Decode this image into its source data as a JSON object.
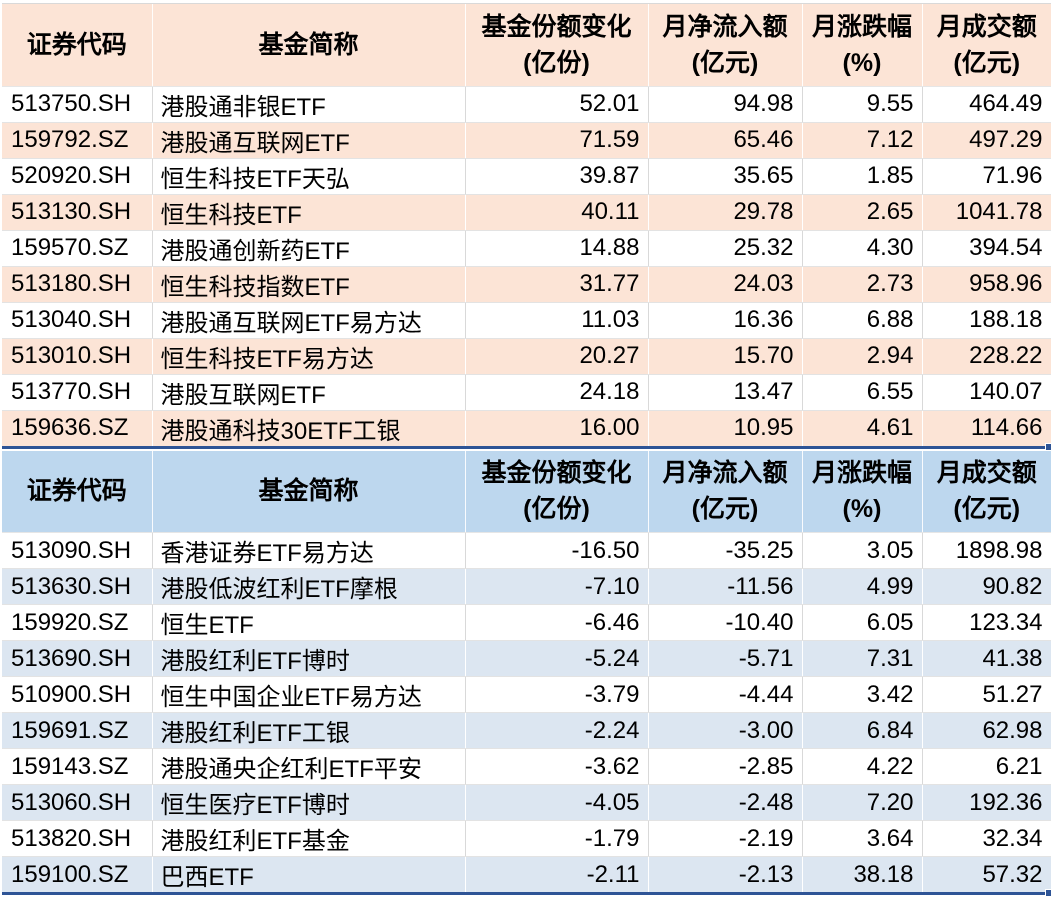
{
  "colors": {
    "inflow_header_bg": "#fce4d6",
    "inflow_stripe_bg": "#fce4d6",
    "outflow_header_bg": "#bdd7ee",
    "outflow_stripe_bg": "#dce6f1",
    "gridline": "#d9d9d9",
    "selection_border": "#2e5496",
    "text": "#000000"
  },
  "tables": [
    {
      "id": "monthly-inflow",
      "theme": "orange",
      "columns": [
        {
          "line1": "证券代码",
          "line2": ""
        },
        {
          "line1": "基金简称",
          "line2": ""
        },
        {
          "line1": "基金份额变化",
          "line2": "(亿份)"
        },
        {
          "line1": "月净流入额",
          "line2": "(亿元)"
        },
        {
          "line1": "月涨跌幅",
          "line2": "(%)"
        },
        {
          "line1": "月成交额",
          "line2": "(亿元)"
        }
      ],
      "rows": [
        [
          "513750.SH",
          "港股通非银ETF",
          "52.01",
          "94.98",
          "9.55",
          "464.49"
        ],
        [
          "159792.SZ",
          "港股通互联网ETF",
          "71.59",
          "65.46",
          "7.12",
          "497.29"
        ],
        [
          "520920.SH",
          "恒生科技ETF天弘",
          "39.87",
          "35.65",
          "1.85",
          "71.96"
        ],
        [
          "513130.SH",
          "恒生科技ETF",
          "40.11",
          "29.78",
          "2.65",
          "1041.78"
        ],
        [
          "159570.SZ",
          "港股通创新药ETF",
          "14.88",
          "25.32",
          "4.30",
          "394.54"
        ],
        [
          "513180.SH",
          "恒生科技指数ETF",
          "31.77",
          "24.03",
          "2.73",
          "958.96"
        ],
        [
          "513040.SH",
          "港股通互联网ETF易方达",
          "11.03",
          "16.36",
          "6.88",
          "188.18"
        ],
        [
          "513010.SH",
          "恒生科技ETF易方达",
          "20.27",
          "15.70",
          "2.94",
          "228.22"
        ],
        [
          "513770.SH",
          "港股互联网ETF",
          "24.18",
          "13.47",
          "6.55",
          "140.07"
        ],
        [
          "159636.SZ",
          "港股通科技30ETF工银",
          "16.00",
          "10.95",
          "4.61",
          "114.66"
        ]
      ]
    },
    {
      "id": "monthly-outflow",
      "theme": "blue",
      "columns": [
        {
          "line1": "证券代码",
          "line2": ""
        },
        {
          "line1": "基金简称",
          "line2": ""
        },
        {
          "line1": "基金份额变化",
          "line2": "(亿份)"
        },
        {
          "line1": "月净流入额",
          "line2": "(亿元)"
        },
        {
          "line1": "月涨跌幅",
          "line2": "(%)"
        },
        {
          "line1": "月成交额",
          "line2": "(亿元)"
        }
      ],
      "rows": [
        [
          "513090.SH",
          "香港证券ETF易方达",
          "-16.50",
          "-35.25",
          "3.05",
          "1898.98"
        ],
        [
          "513630.SH",
          "港股低波红利ETF摩根",
          "-7.10",
          "-11.56",
          "4.99",
          "90.82"
        ],
        [
          "159920.SZ",
          "恒生ETF",
          "-6.46",
          "-10.40",
          "6.05",
          "123.34"
        ],
        [
          "513690.SH",
          "港股红利ETF博时",
          "-5.24",
          "-5.71",
          "7.31",
          "41.38"
        ],
        [
          "510900.SH",
          "恒生中国企业ETF易方达",
          "-3.79",
          "-4.44",
          "3.42",
          "51.27"
        ],
        [
          "159691.SZ",
          "港股红利ETF工银",
          "-2.24",
          "-3.00",
          "6.84",
          "62.98"
        ],
        [
          "159143.SZ",
          "港股通央企红利ETF平安",
          "-3.62",
          "-2.85",
          "4.22",
          "6.21"
        ],
        [
          "513060.SH",
          "恒生医疗ETF博时",
          "-4.05",
          "-2.48",
          "7.20",
          "192.36"
        ],
        [
          "513820.SH",
          "港股红利ETF基金",
          "-1.79",
          "-2.19",
          "3.64",
          "32.34"
        ],
        [
          "159100.SZ",
          "巴西ETF",
          "-2.11",
          "-2.13",
          "38.18",
          "57.32"
        ]
      ]
    }
  ]
}
